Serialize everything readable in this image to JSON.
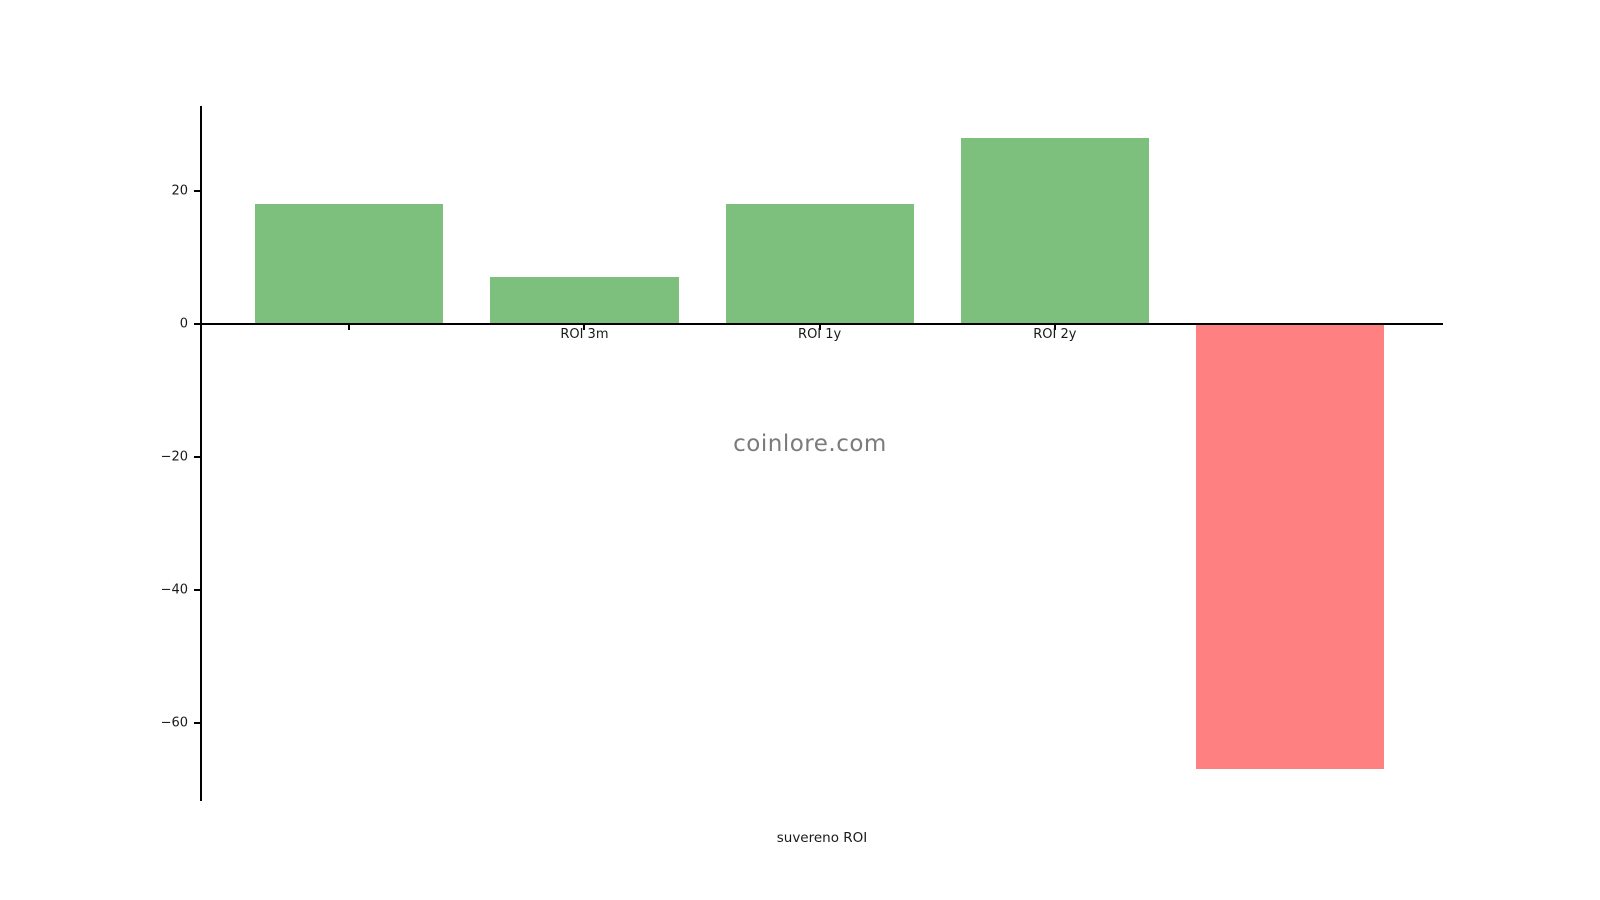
{
  "watermark": {
    "text": "coinlore.com"
  },
  "chart_data": {
    "type": "bar",
    "title": "",
    "xlabel": "suvereno ROI",
    "ylabel": "",
    "categories": [
      "",
      "ROI 3m",
      "ROI 1y",
      "ROI 2y",
      ""
    ],
    "values": [
      18,
      7,
      18,
      28,
      -67
    ],
    "bar_colors": [
      "#7dbf7d",
      "#7dbf7d",
      "#7dbf7d",
      "#7dbf7d",
      "#ff8080"
    ],
    "yticks": [
      20,
      0,
      -20,
      -40,
      -60
    ],
    "ylim": [
      -71.75,
      32.75
    ],
    "xlim": [
      -0.63,
      4.65
    ],
    "bar_width": 0.8,
    "grid": false,
    "legend_position": "none",
    "colors": {
      "positive": "#7dbf7d",
      "negative": "#ff8080",
      "axis": "#000000",
      "tick_text": "#1a1a1a",
      "watermark": "#7b7b7b"
    }
  }
}
